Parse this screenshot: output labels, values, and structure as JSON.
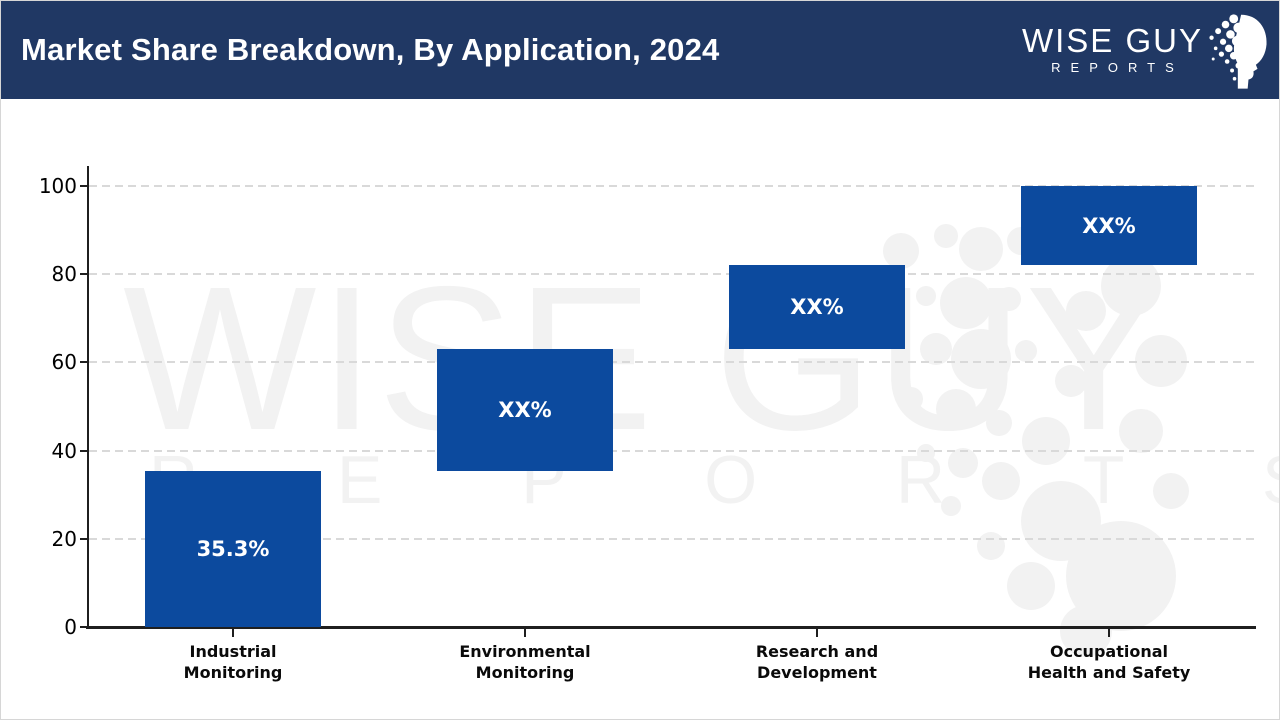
{
  "header": {
    "title": "Market Share Breakdown, By Application, 2024",
    "background_color": "#203864",
    "logo_line1": "WISE GUY",
    "logo_line2": "REPORTS"
  },
  "watermark": {
    "line1": "WISE GUY",
    "line2": "R E P O R T S"
  },
  "chart_data": {
    "type": "bar",
    "subtype": "floating-waterfall",
    "title": "Market Share Breakdown, By Application, 2024",
    "categories": [
      "Industrial Monitoring",
      "Environmental Monitoring",
      "Research and Development",
      "Occupational Health and Safety"
    ],
    "category_label_lines": [
      [
        "Industrial",
        "Monitoring"
      ],
      [
        "Environmental",
        "Monitoring"
      ],
      [
        "Research and",
        "Development"
      ],
      [
        "Occupational",
        "Health and Safety"
      ]
    ],
    "series": [
      {
        "name": "Market Share",
        "segments": [
          {
            "start": 0,
            "end": 35.3,
            "label": "35.3%"
          },
          {
            "start": 35.3,
            "end": 63,
            "label": "XX%"
          },
          {
            "start": 63,
            "end": 82,
            "label": "XX%"
          },
          {
            "start": 82,
            "end": 100,
            "label": "XX%"
          }
        ]
      }
    ],
    "xlabel": "",
    "ylabel": "",
    "y_ticks": [
      0,
      20,
      40,
      60,
      80,
      100
    ],
    "ylim": [
      0,
      105
    ],
    "grid": "horizontal dashed",
    "legend": "none",
    "bar_color": "#0c4a9e",
    "bar_label_color": "#ffffff"
  }
}
